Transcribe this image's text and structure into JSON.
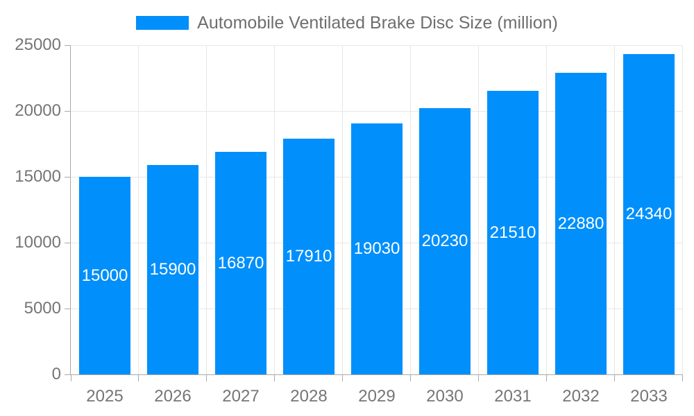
{
  "legend": {
    "label": "Automobile Ventilated Brake Disc Size (million)",
    "swatch_color": "#008FFB"
  },
  "chart_data": {
    "type": "bar",
    "title": "Automobile Ventilated Brake Disc Size (million)",
    "categories": [
      "2025",
      "2026",
      "2027",
      "2028",
      "2029",
      "2030",
      "2031",
      "2032",
      "2033"
    ],
    "values": [
      15000,
      15900,
      16870,
      17910,
      19030,
      20230,
      21510,
      22880,
      24340
    ],
    "series_name": "Automobile Ventilated Brake Disc Size (million)",
    "xlabel": "",
    "ylabel": "",
    "ylim": [
      0,
      25000
    ],
    "ytick_step": 5000,
    "ytick_labels": [
      "0",
      "5000",
      "10000",
      "15000",
      "20000",
      "25000"
    ],
    "grid": true,
    "legend_position": "top",
    "bar_color": "#008FFB",
    "value_label_color": "#ffffff",
    "axis_label_color": "#757575",
    "gridline_color": "#e7e7e7",
    "axis_line_color": "#a8a8a8"
  }
}
